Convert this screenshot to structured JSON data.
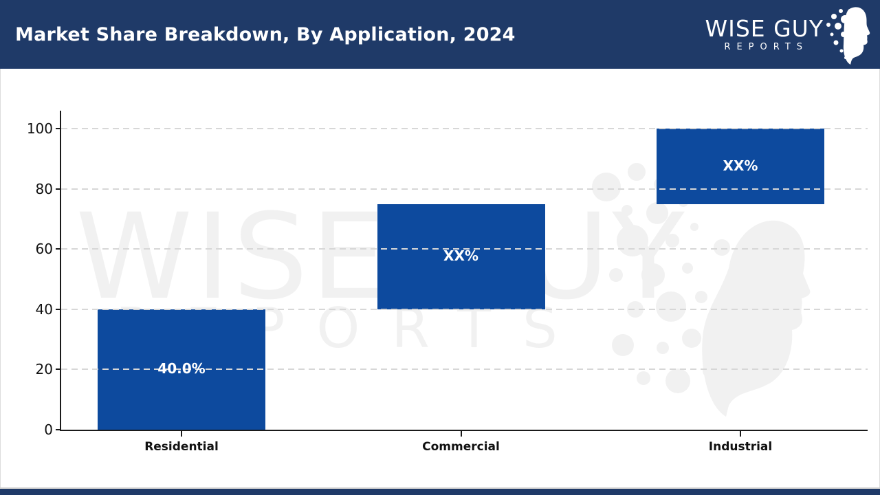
{
  "header": {
    "title": "Market Share Breakdown, By Application, 2024",
    "logo": {
      "wordmark": "WISE GUY",
      "subtitle": "REPORTS"
    }
  },
  "watermark": {
    "line1": "WISE GUY",
    "line2": "REPORTS"
  },
  "chart_data": {
    "type": "bar",
    "subtype": "waterfall-floating-segments",
    "title": "Market Share Breakdown, By Application, 2024",
    "categories": [
      "Residential",
      "Commercial",
      "Industrial"
    ],
    "segments": [
      {
        "category": "Residential",
        "start": 0,
        "end": 40,
        "label": "40.0%"
      },
      {
        "category": "Commercial",
        "start": 40,
        "end": 75,
        "label": "XX%"
      },
      {
        "category": "Industrial",
        "start": 75,
        "end": 100,
        "label": "XX%"
      }
    ],
    "series": [
      {
        "name": "Market Share (%)",
        "values": [
          40.0,
          35.0,
          25.0
        ]
      }
    ],
    "xlabel": "",
    "ylabel": "",
    "yticks": [
      0,
      20,
      40,
      60,
      80,
      100
    ],
    "ylim": [
      0,
      106
    ],
    "grid": "dashed-horizontal",
    "legend_position": "none",
    "bar_color": "#0d4a9e",
    "gridline_color": "#d7d7d7",
    "axis_color": "#1a1a1a",
    "header_color": "#1f3a68",
    "watermark_color": "#f1f1f1",
    "bar_label_color": "#ffffff"
  }
}
